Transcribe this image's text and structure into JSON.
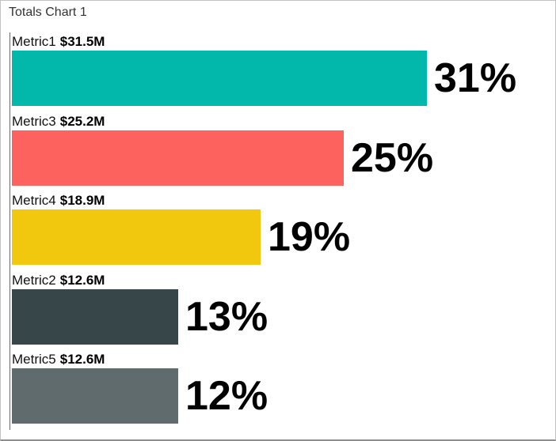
{
  "header": {
    "title": "Totals Chart 1"
  },
  "chart_data": {
    "type": "bar",
    "orientation": "horizontal",
    "title": "Totals Chart 1",
    "categories": [
      "Metric1",
      "Metric3",
      "Metric4",
      "Metric2",
      "Metric5"
    ],
    "values": [
      31.5,
      25.2,
      18.9,
      12.6,
      12.6
    ],
    "value_labels": [
      "$31.5M",
      "$25.2M",
      "$18.9M",
      "$12.6M",
      "$12.6M"
    ],
    "percents": [
      31,
      25,
      19,
      13,
      12
    ],
    "percent_labels": [
      "31%",
      "25%",
      "19%",
      "13%",
      "12%"
    ],
    "colors": [
      "#01B8AA",
      "#FD625E",
      "#F2C80F",
      "#374649",
      "#5F6B6D"
    ],
    "axis_line_color": "#6a6a6a",
    "legend": "none",
    "gridlines": false,
    "xlim": [
      0,
      31.5
    ]
  }
}
